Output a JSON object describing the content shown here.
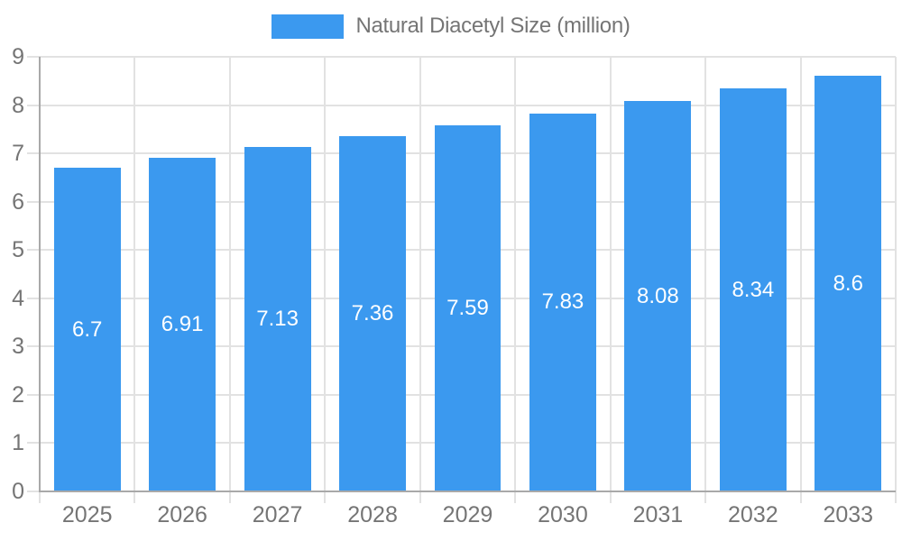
{
  "legend": {
    "label": "Natural Diacetyl Size (million)"
  },
  "chart_data": {
    "type": "bar",
    "title": "Natural Diacetyl Size (million)",
    "categories": [
      "2025",
      "2026",
      "2027",
      "2028",
      "2029",
      "2030",
      "2031",
      "2032",
      "2033"
    ],
    "values": [
      6.7,
      6.91,
      7.13,
      7.36,
      7.59,
      7.83,
      8.08,
      8.34,
      8.6
    ],
    "value_labels": [
      "6.7",
      "6.91",
      "7.13",
      "7.36",
      "7.59",
      "7.83",
      "8.08",
      "8.34",
      "8.6"
    ],
    "xlabel": "",
    "ylabel": "",
    "ylim": [
      0,
      9
    ],
    "y_ticks": [
      0,
      1,
      2,
      3,
      4,
      5,
      6,
      7,
      8,
      9
    ],
    "legend_position": "top",
    "grid": true,
    "value_labels_position": "center-of-bar",
    "colors": {
      "bar": "#3B99EF",
      "bar_label_text": "#FFFFFF",
      "axis_text": "#757575",
      "axis_line": "#A9A9A9",
      "gridline": "#E2E2E2",
      "background": "#FFFFFF"
    }
  }
}
